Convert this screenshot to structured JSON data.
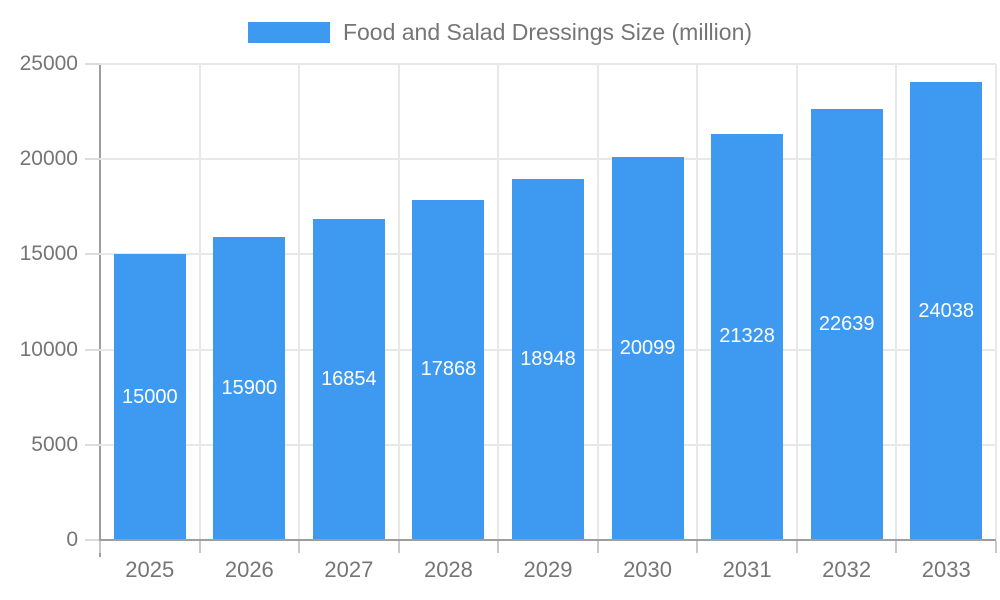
{
  "colors": {
    "bar": "#3D9AF0",
    "axis_text": "#757575",
    "legend_text": "#757575",
    "value_label_text": "#ffffff",
    "gridline": "#e8e8e8",
    "axis_line": "#9e9e9e"
  },
  "chart_data": {
    "type": "bar",
    "title": "",
    "legend": "Food and Salad Dressings Size (million)",
    "legend_position": "top",
    "categories": [
      "2025",
      "2026",
      "2027",
      "2028",
      "2029",
      "2030",
      "2031",
      "2032",
      "2033"
    ],
    "values": [
      15000,
      15900,
      16854,
      17868,
      18948,
      20099,
      21328,
      22639,
      24038
    ],
    "series": [
      {
        "name": "Food and Salad Dressings Size (million)",
        "values": [
          15000,
          15900,
          16854,
          17868,
          18948,
          20099,
          21328,
          22639,
          24038
        ]
      }
    ],
    "value_labels": [
      "15000",
      "15900",
      "16854",
      "17868",
      "18948",
      "20099",
      "21328",
      "22639",
      "24038"
    ],
    "xlabel": "",
    "ylabel": "",
    "ylim": [
      0,
      25000
    ],
    "yticks": [
      0,
      5000,
      10000,
      15000,
      20000,
      25000
    ],
    "ytick_labels": [
      "0",
      "5000",
      "10000",
      "15000",
      "20000",
      "25000"
    ],
    "grid": true,
    "value_label_position": "inside-center"
  }
}
